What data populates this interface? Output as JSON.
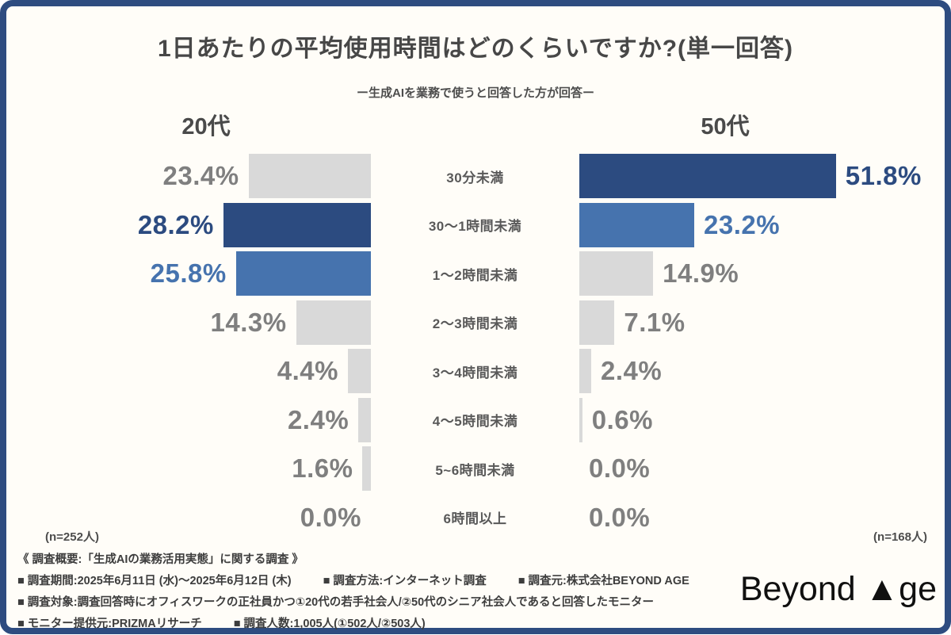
{
  "page": {
    "title": "1日あたりの平均使用時間はどのくらいですか?(単一回答)",
    "subtitle": "ー生成AIを業務で使うと回答した方が回答ー"
  },
  "chart_data": {
    "type": "bar",
    "layout": "butterfly-horizontal",
    "title": "1日あたりの平均使用時間はどのくらいですか?(単一回答)",
    "subtitle": "ー生成AIを業務で使うと回答した方が回答ー",
    "categories": [
      "30分未満",
      "30〜1時間未満",
      "1〜2時間未満",
      "2〜3時間未満",
      "3〜4時間未満",
      "4〜5時間未満",
      "5~6時間未満",
      "6時間以上"
    ],
    "value_suffix": "%",
    "series": [
      {
        "name": "20代",
        "side": "left",
        "n_label": "(n=252人)",
        "values": [
          23.4,
          28.2,
          25.8,
          14.3,
          4.4,
          2.4,
          1.6,
          0.0
        ],
        "bar_colors": [
          "gray",
          "navy",
          "blue",
          "gray",
          "gray",
          "gray",
          "gray",
          "gray"
        ]
      },
      {
        "name": "50代",
        "side": "right",
        "n_label": "(n=168人)",
        "values": [
          51.8,
          23.2,
          14.9,
          7.1,
          2.4,
          0.6,
          0.0,
          0.0
        ],
        "bar_colors": [
          "navy",
          "blue",
          "gray",
          "gray",
          "gray",
          "gray",
          "gray",
          "gray"
        ]
      }
    ],
    "axis_hidden": true,
    "grid": false,
    "legend": false
  },
  "colors": {
    "navy": "#2c4b80",
    "blue": "#4673ae",
    "gray": "#d9d9d9",
    "label_gray": "#7f7f7f",
    "frame_border": "#2e4c80",
    "background": "#fffdf8"
  },
  "footer": {
    "overview": "《 調査概要:「生成AIの業務活用実態」に関する調査 》",
    "line2_items": [
      "■ 調査期間:2025年6月11日 (水)〜2025年6月12日 (木)",
      "■ 調査方法:インターネット調査",
      "■ 調査元:株式会社BEYOND AGE"
    ],
    "line3": "■ 調査対象:調査回答時にオフィスワークの正社員かつ①20代の若手社会人/②50代のシニア社会人であると回答したモニター",
    "line4_items": [
      "■ モニター提供元:PRIZMAリサーチ",
      "■ 調査人数:1,005人(①502人/②503人)"
    ]
  },
  "logo_text": "Beyond ▲ge"
}
